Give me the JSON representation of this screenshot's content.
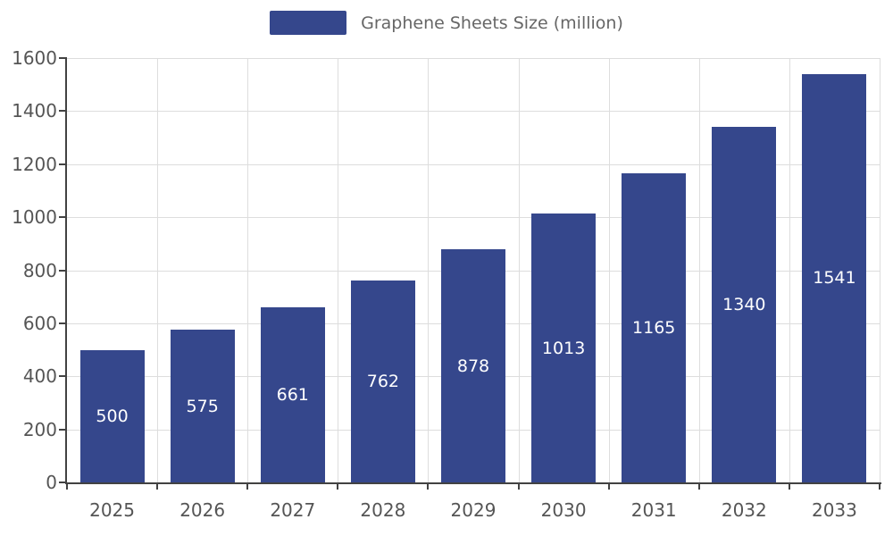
{
  "chart_data": {
    "type": "bar",
    "title": "Graphene Sheets Size (million)",
    "legend_entries": [
      "Graphene Sheets Size (million)"
    ],
    "legend_position": "top",
    "categories": [
      "2025",
      "2026",
      "2027",
      "2028",
      "2029",
      "2030",
      "2031",
      "2032",
      "2033"
    ],
    "series": [
      {
        "name": "Graphene Sheets Size (million)",
        "values": [
          500,
          575,
          661,
          762,
          878,
          1013,
          1165,
          1340,
          1541
        ]
      }
    ],
    "xlabel": "",
    "ylabel": "",
    "ylim": [
      0,
      1600
    ],
    "yticks": [
      0,
      200,
      400,
      600,
      800,
      1000,
      1200,
      1400,
      1600
    ],
    "grid": true,
    "bar_labels_inside": true
  },
  "colors": {
    "bar": "#35478C",
    "bar_label": "#FFFFFF",
    "axis": "#424242",
    "grid": "#DDDDDD",
    "tick_label": "#555555",
    "legend_text": "#666666"
  }
}
